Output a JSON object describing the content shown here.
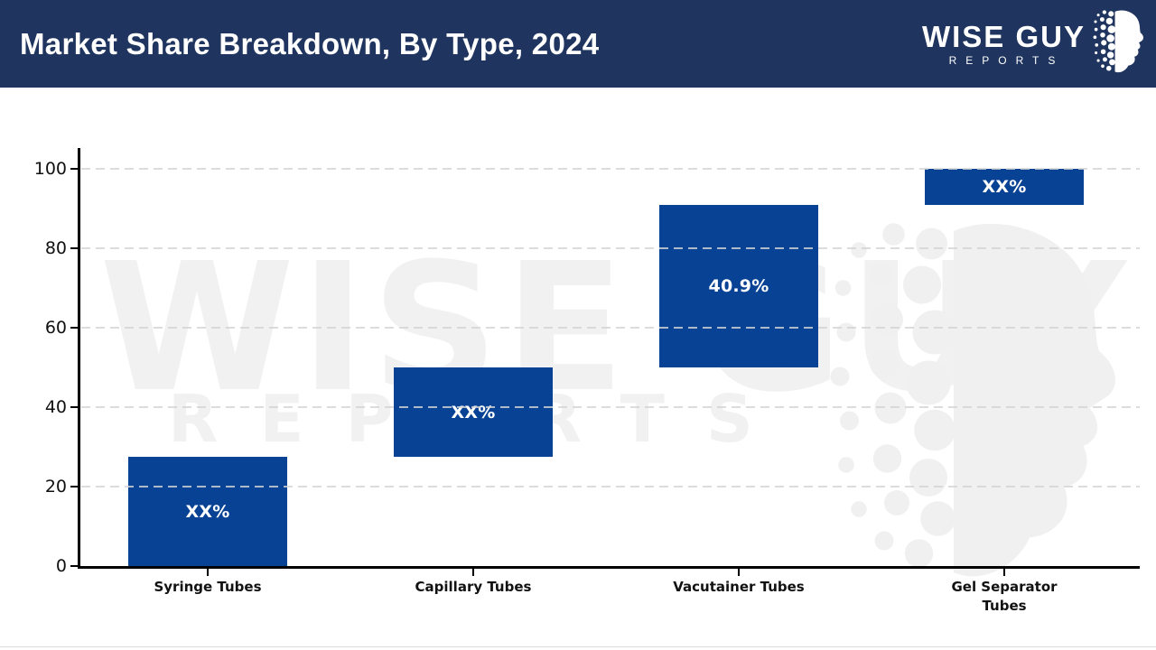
{
  "header": {
    "title": "Market Share Breakdown, By Type, 2024",
    "logo": {
      "name": "WISE GUY",
      "subtitle": "REPORTS"
    }
  },
  "watermark": {
    "line1": "WISE GUY",
    "line2": "REPORTS"
  },
  "chart_data": {
    "type": "bar",
    "variant": "floating-stacked-waterfall",
    "title": "Market Share Breakdown, By Type, 2024",
    "categories": [
      "Syringe Tubes",
      "Capillary Tubes",
      "Vacutainer Tubes",
      "Gel Separator\nTubes"
    ],
    "bars": [
      {
        "category": "Syringe Tubes",
        "start": 0,
        "end": 27.5,
        "label": "XX%"
      },
      {
        "category": "Capillary Tubes",
        "start": 27.5,
        "end": 50.0,
        "label": "XX%"
      },
      {
        "category": "Vacutainer Tubes",
        "start": 50.0,
        "end": 90.9,
        "label": "40.9%"
      },
      {
        "category": "Gel Separator Tubes",
        "start": 90.9,
        "end": 100.0,
        "label": "XX%"
      }
    ],
    "yticks": [
      0,
      20,
      40,
      60,
      80,
      100
    ],
    "ylim": [
      0,
      105
    ],
    "grid": true,
    "grid_style": "dashed",
    "legend": false,
    "bar_color": "#084294",
    "bar_label_color": "#ffffff"
  },
  "colors": {
    "header_bg": "#1f345e",
    "bar": "#084294",
    "watermark": "#f1f1f1",
    "grid": "#d4d4d4",
    "axis": "#000000"
  }
}
